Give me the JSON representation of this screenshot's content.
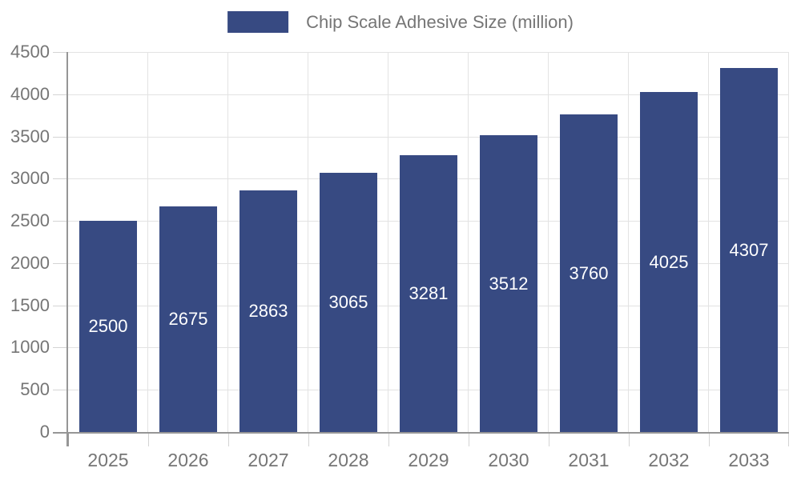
{
  "chart_data": {
    "type": "bar",
    "title": "Chip Scale Adhesive Size (million)",
    "legend": {
      "label": "Chip Scale Adhesive Size (million)",
      "position": "top-center"
    },
    "categories": [
      "2025",
      "2026",
      "2027",
      "2028",
      "2029",
      "2030",
      "2031",
      "2032",
      "2033"
    ],
    "series": [
      {
        "name": "Chip Scale Adhesive Size (million)",
        "values": [
          2500,
          2675,
          2863,
          3065,
          3281,
          3512,
          3760,
          4025,
          4307
        ]
      }
    ],
    "xlabel": "",
    "ylabel": "",
    "ylim": [
      0,
      4500
    ],
    "ytick_step": 500,
    "yticks": [
      0,
      500,
      1000,
      1500,
      2000,
      2500,
      3000,
      3500,
      4000,
      4500
    ],
    "grid": true,
    "value_labels": "inside-center",
    "colors": {
      "bar": "#374a82",
      "axis_text": "#757575",
      "value_label": "#ffffff",
      "gridline": "#e3e3e3",
      "tick": "#d4d4d4",
      "axis_line": "#969696",
      "background": "#ffffff"
    }
  }
}
